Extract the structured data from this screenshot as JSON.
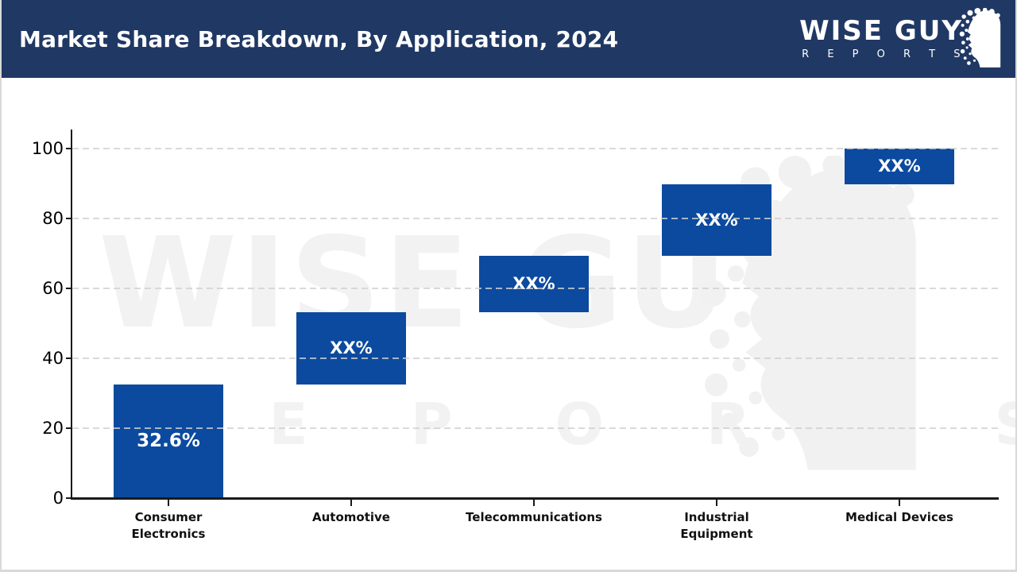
{
  "header": {
    "title": "Market Share Breakdown, By Application, 2024",
    "bg_color": "#203864",
    "logo": {
      "line1": "WISE GUY",
      "line2": "R E P O R T S",
      "face_icon": "dotted-face-profile"
    }
  },
  "watermark": {
    "line1": "WISE GUY",
    "line2": "R E P O R T S",
    "color": "#f2f2f2"
  },
  "chart_data": {
    "type": "bar",
    "subtype": "waterfall",
    "title": "Market Share Breakdown, By Application, 2024",
    "categories": [
      "Consumer Electronics",
      "Automotive",
      "Telecommunications",
      "Industrial Equipment",
      "Medical Devices"
    ],
    "tick_labels": [
      "Consumer\nElectronics",
      "Automotive",
      "Telecommunications",
      "Industrial\nEquipment",
      "Medical Devices"
    ],
    "segments": [
      {
        "category": "Consumer Electronics",
        "start": 0,
        "end": 32.6,
        "label": "32.6%"
      },
      {
        "category": "Automotive",
        "start": 32.6,
        "end": 53.2,
        "label": "XX%"
      },
      {
        "category": "Telecommunications",
        "start": 53.2,
        "end": 69.3,
        "label": "XX%"
      },
      {
        "category": "Industrial Equipment",
        "start": 69.3,
        "end": 89.8,
        "label": "XX%"
      },
      {
        "category": "Medical Devices",
        "start": 89.8,
        "end": 100,
        "label": "XX%"
      }
    ],
    "xlabel": "",
    "ylabel": "",
    "ylim": [
      0,
      100
    ],
    "yticks": [
      0,
      20,
      40,
      60,
      80,
      100
    ],
    "grid": "horizontal-dashed",
    "legend": "none",
    "bar_color": "#0b4a9e",
    "bar_label_color": "#ffffff",
    "axis_color": "#1a1a1a",
    "grid_color": "#d6d6d6"
  }
}
